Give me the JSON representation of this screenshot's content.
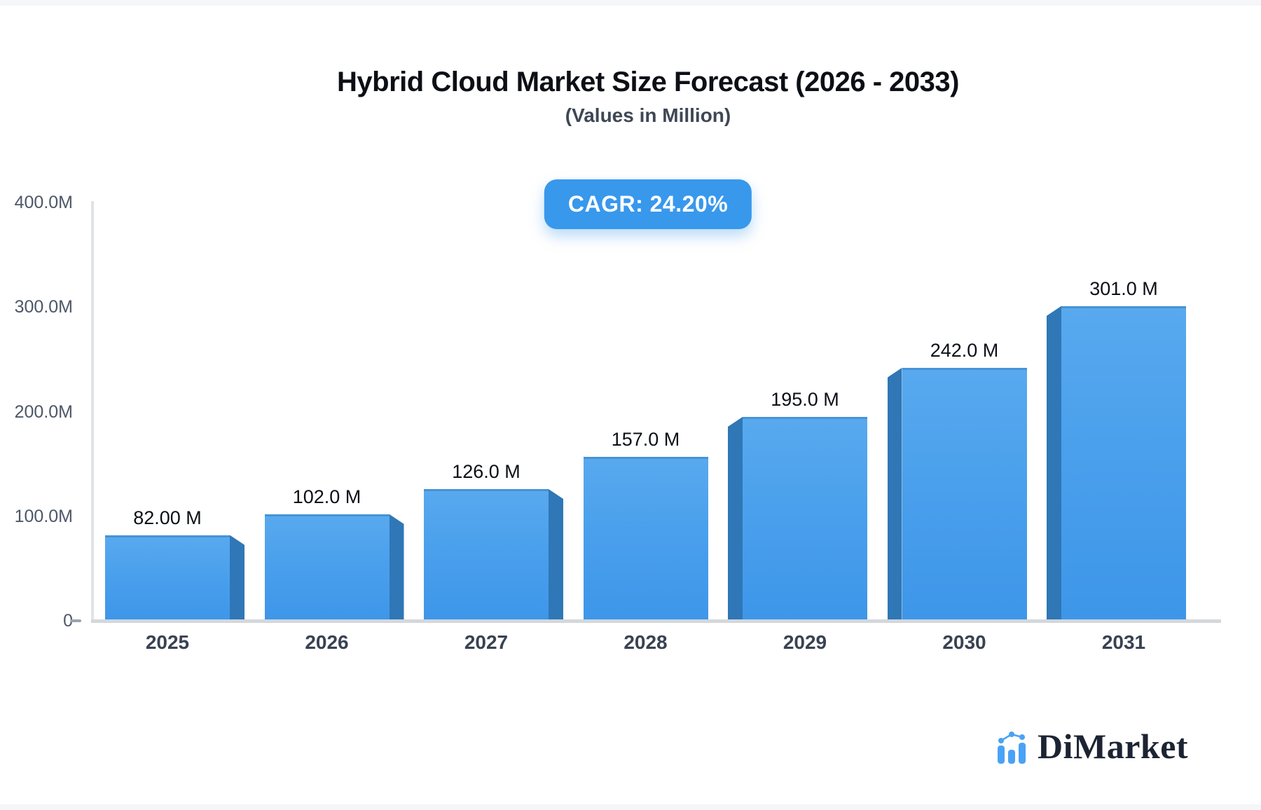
{
  "title": "Hybrid Cloud Market Size Forecast (2026 - 2033)",
  "subtitle": "(Values in Million)",
  "badge": {
    "label": "CAGR: 24.20%",
    "color": "#3898ec"
  },
  "chart_data": {
    "type": "bar",
    "title": "Hybrid Cloud Market Size Forecast (2026 - 2033)",
    "subtitle": "(Values in Million)",
    "unit": "Million",
    "cagr_percent": 24.2,
    "categories": [
      "2025",
      "2026",
      "2027",
      "2028",
      "2029",
      "2030",
      "2031"
    ],
    "values": [
      82,
      102,
      126,
      157,
      195,
      242,
      301
    ],
    "value_labels": [
      "82.00 M",
      "102.0 M",
      "126.0 M",
      "157.0 M",
      "195.0 M",
      "242.0 M",
      "301.0 M"
    ],
    "ylim": [
      0,
      400
    ],
    "y_ticks": [
      {
        "label": "400.0M",
        "value": 400
      },
      {
        "label": "300.0M",
        "value": 300
      },
      {
        "label": "200.0M",
        "value": 200
      },
      {
        "label": "100.0M",
        "value": 100
      },
      {
        "label": "0",
        "value": 0
      }
    ],
    "grid": false,
    "legend": "none",
    "style": {
      "bar_face_top": "#58a9ee",
      "bar_face_bottom": "#3e96e9",
      "bar_side": "#2f77b6",
      "effect": "3d-perspective-from-center"
    }
  },
  "logo": {
    "text": "DiMarket",
    "icon": "bar-chart-trend-icon",
    "icon_color": "#4aa2f5",
    "text_color": "#1c2433"
  }
}
